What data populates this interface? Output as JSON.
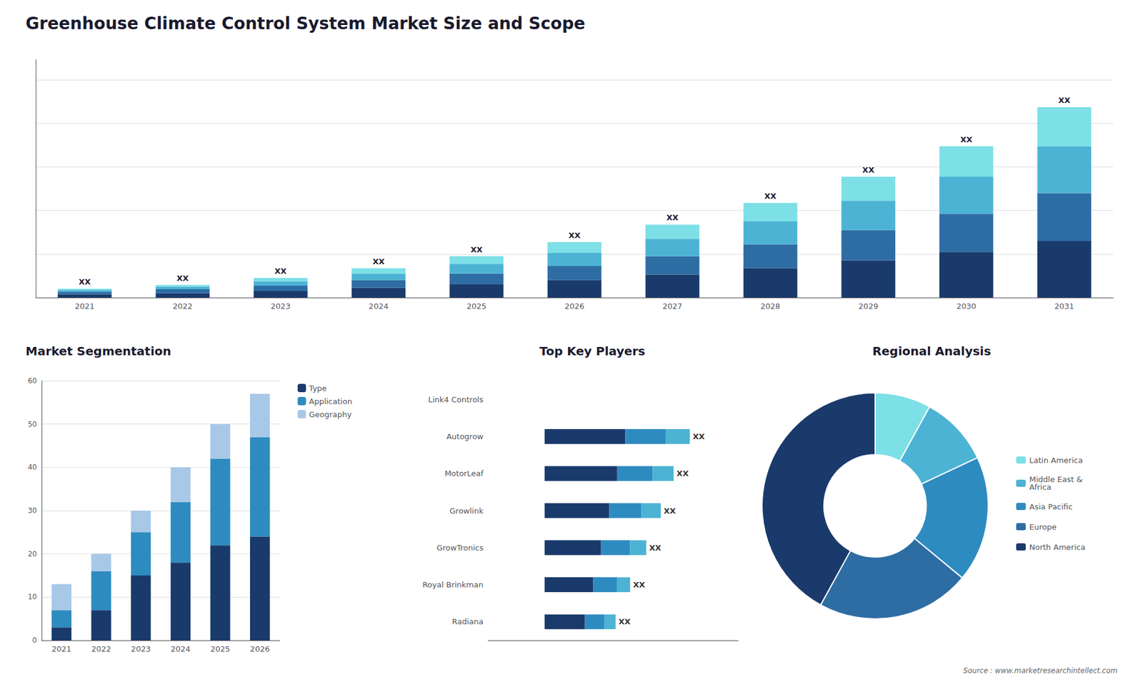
{
  "chart_data": [
    {
      "type": "bar",
      "stacked": true,
      "title": "Greenhouse Climate Control System Market Size and Scope",
      "annotations": [
        "Source : www.marketresearchintellect.com"
      ],
      "categories": [
        "2021",
        "2022",
        "2023",
        "2024",
        "2025",
        "2026",
        "2027",
        "2028",
        "2029",
        "2030",
        "2031"
      ],
      "series": [
        {
          "color": "#1a3a6b",
          "values": [
            1.5,
            2.0,
            3.0,
            4.5,
            6.0,
            8.0,
            10.5,
            13.5,
            17.0,
            21.0,
            26.0
          ]
        },
        {
          "color": "#2e6da4",
          "values": [
            1.2,
            1.8,
            2.5,
            3.5,
            5.0,
            6.5,
            8.5,
            11.0,
            14.0,
            17.5,
            22.0
          ]
        },
        {
          "color": "#4db3d4",
          "values": [
            0.8,
            1.2,
            2.0,
            3.0,
            4.5,
            6.0,
            8.0,
            10.5,
            13.5,
            17.0,
            21.5
          ]
        },
        {
          "color": "#7de0e6",
          "values": [
            0.5,
            0.8,
            1.5,
            2.5,
            3.5,
            5.0,
            6.5,
            8.5,
            11.0,
            14.0,
            18.0
          ]
        }
      ],
      "top_labels": [
        "XX",
        "XX",
        "XX",
        "XX",
        "XX",
        "XX",
        "XX",
        "XX",
        "XX",
        "XX",
        "XX"
      ],
      "ylim": [
        0,
        109.375
      ],
      "yticks": [
        0,
        20,
        40,
        60,
        80,
        100
      ],
      "grid": true,
      "tick_labels": "x"
    },
    {
      "type": "bar",
      "stacked": true,
      "title": "Market Segmentation",
      "categories": [
        "2021",
        "2022",
        "2023",
        "2024",
        "2025",
        "2026"
      ],
      "series": [
        {
          "name": "Type",
          "color": "#1a3a6b",
          "values": [
            3,
            7,
            15,
            18,
            22,
            24
          ]
        },
        {
          "name": "Application",
          "color": "#2e8bc0",
          "values": [
            4,
            9,
            10,
            14,
            20,
            23
          ]
        },
        {
          "name": "Geography",
          "color": "#a8c8e8",
          "values": [
            6,
            4,
            5,
            8,
            8,
            10
          ]
        }
      ],
      "ylim": [
        0,
        60
      ],
      "yticks": [
        0,
        10,
        20,
        30,
        40,
        50,
        60
      ],
      "grid": true,
      "legend": "right"
    },
    {
      "type": "bar",
      "stacked": true,
      "orientation": "horizontal",
      "title": "Top Key Players",
      "categories": [
        "Link4 Controls",
        "Autogrow",
        "MotorLeaf",
        "Growlink",
        "GrowTronics",
        "Royal Brinkman",
        "Radiana"
      ],
      "series": [
        {
          "color": "#1a3a6b",
          "values": [
            0,
            5.0,
            4.5,
            4.0,
            3.5,
            3.0,
            2.5
          ]
        },
        {
          "color": "#2e8bc0",
          "values": [
            0,
            2.5,
            2.2,
            2.0,
            1.8,
            1.5,
            1.2
          ]
        },
        {
          "color": "#4db3d4",
          "values": [
            0,
            1.5,
            1.3,
            1.2,
            1.0,
            0.8,
            0.7
          ]
        }
      ],
      "end_labels": [
        null,
        "XX",
        "XX",
        "XX",
        "XX",
        "XX",
        "XX"
      ],
      "xlim": [
        -3.5,
        12
      ],
      "grid": false,
      "tick_labels": "y"
    },
    {
      "type": "pie",
      "title": "Regional Analysis",
      "categories": [
        "Latin America",
        "Middle East &\nAfrica",
        "Asia Pacific",
        "Europe",
        "North America"
      ],
      "values": [
        8,
        10,
        18,
        22,
        42
      ],
      "colors": [
        "#7de0e6",
        "#4db3d4",
        "#2e8bc0",
        "#2e6da4",
        "#1a3a6b"
      ],
      "legend": "right"
    }
  ]
}
